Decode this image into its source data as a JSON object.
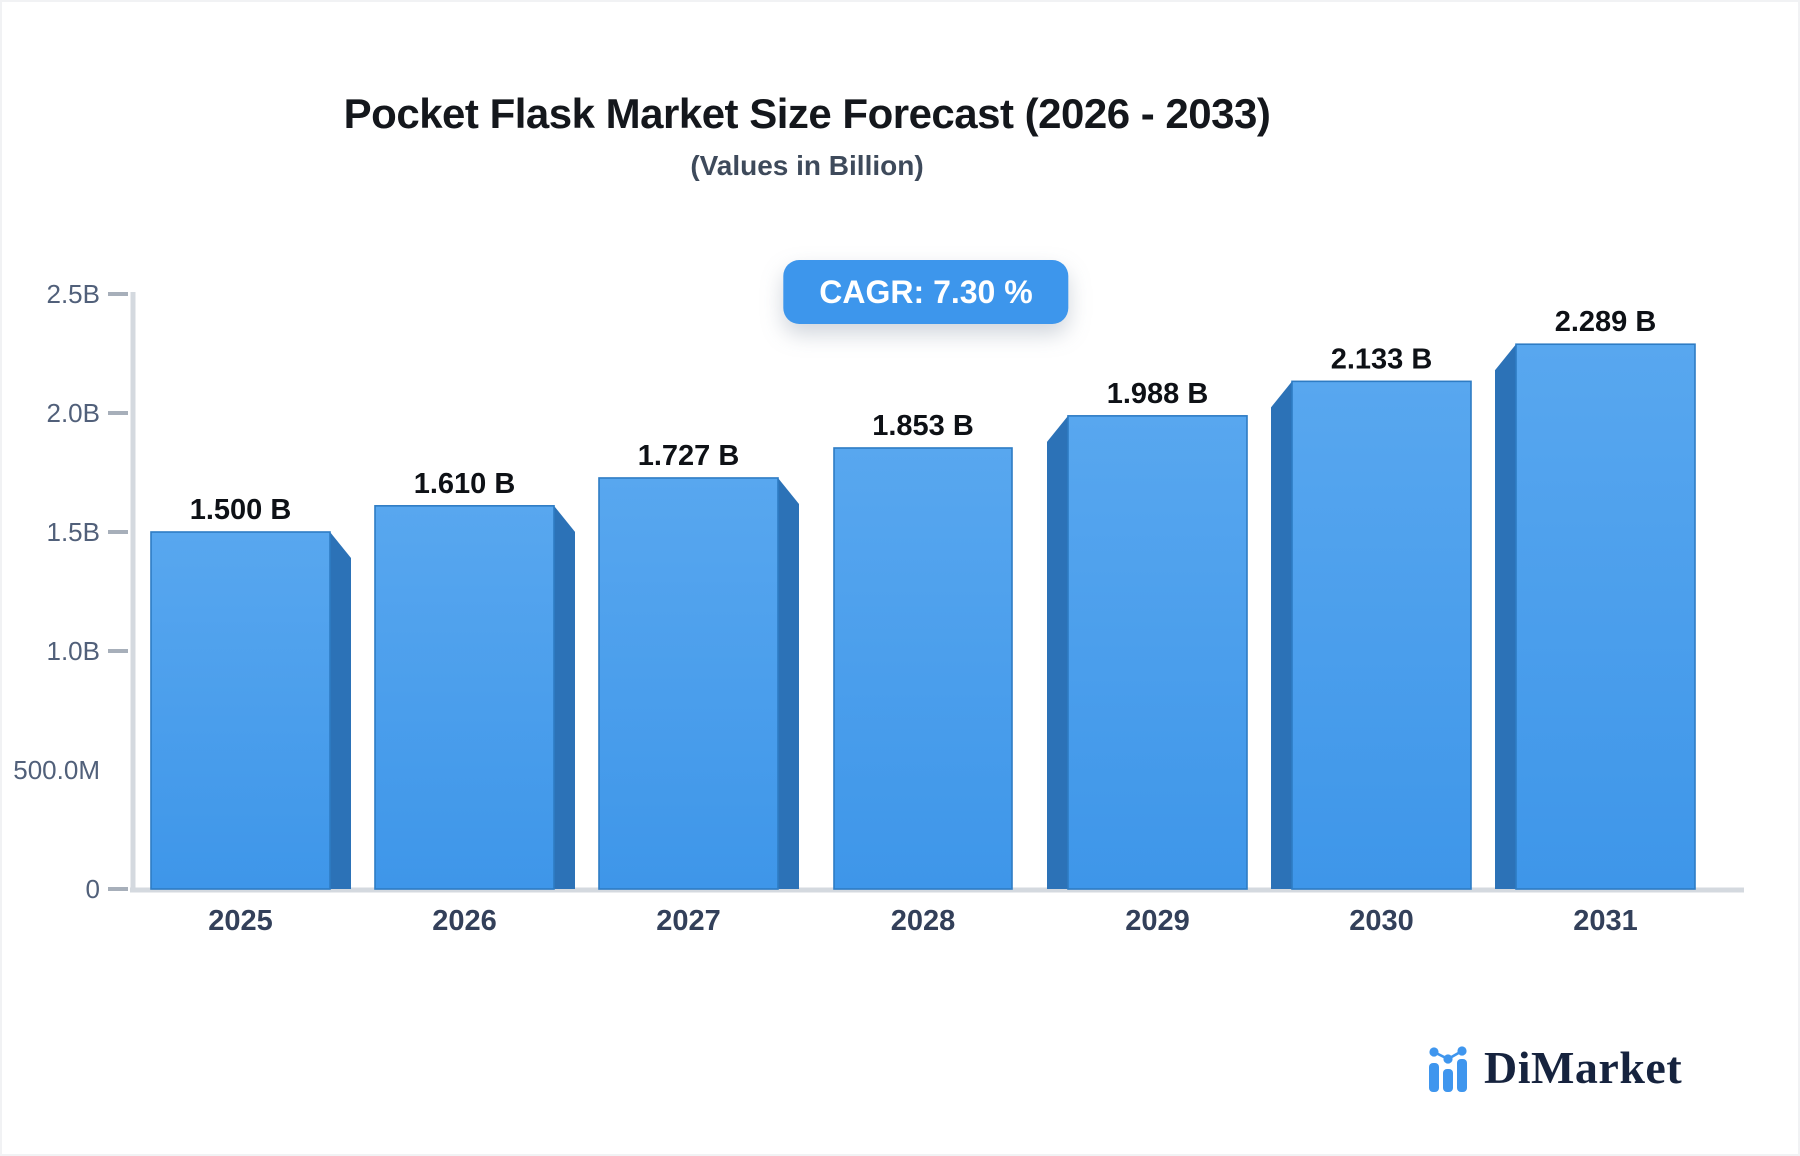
{
  "header": {
    "title": "Pocket Flask Market Size Forecast (2026 - 2033)",
    "subtitle": "(Values in Billion)"
  },
  "badge": {
    "label": "CAGR: 7.30 %"
  },
  "chart_data": {
    "type": "bar",
    "title": "Pocket Flask Market Size Forecast (2026 - 2033)",
    "subtitle": "(Values in Billion)",
    "cagr_percent": 7.3,
    "categories": [
      "2025",
      "2026",
      "2027",
      "2028",
      "2029",
      "2030",
      "2031"
    ],
    "values": [
      1.5,
      1.61,
      1.727,
      1.853,
      1.988,
      2.133,
      2.289
    ],
    "bar_labels": [
      "1.500 B",
      "1.610 B",
      "1.727 B",
      "1.853 B",
      "1.988 B",
      "2.133 B",
      "2.289 B"
    ],
    "sides_3d": [
      "right",
      "right",
      "right",
      "none",
      "left",
      "left",
      "left"
    ],
    "xlabel": "",
    "ylabel": "",
    "ylim": [
      0,
      2.5
    ],
    "yticks": [
      {
        "value": 0.0,
        "label": "0",
        "dash": true
      },
      {
        "value": 0.5,
        "label": "500.0M",
        "dash": false
      },
      {
        "value": 1.0,
        "label": "1.0B",
        "dash": true
      },
      {
        "value": 1.5,
        "label": "1.5B",
        "dash": true
      },
      {
        "value": 2.0,
        "label": "2.0B",
        "dash": true
      },
      {
        "value": 2.5,
        "label": "2.5B",
        "dash": true
      }
    ],
    "grid": false,
    "legend": false
  },
  "colors": {
    "bar_face_top": "#58a7ef",
    "bar_face_bottom": "#3e96e9",
    "bar_side": "#2c72b7",
    "bar_stroke": "#2e7cc4",
    "badge_bg": "#3d96ec",
    "axis_line": "#d4d9df",
    "tick_dash": "#a7afba",
    "ytick_label": "#51607a",
    "xtick_label": "#33405a",
    "value_label": "#0e1116",
    "brand_blue": "#3f96ee",
    "brand_navy": "#16233e"
  },
  "logo": {
    "text": "DiMarket"
  }
}
